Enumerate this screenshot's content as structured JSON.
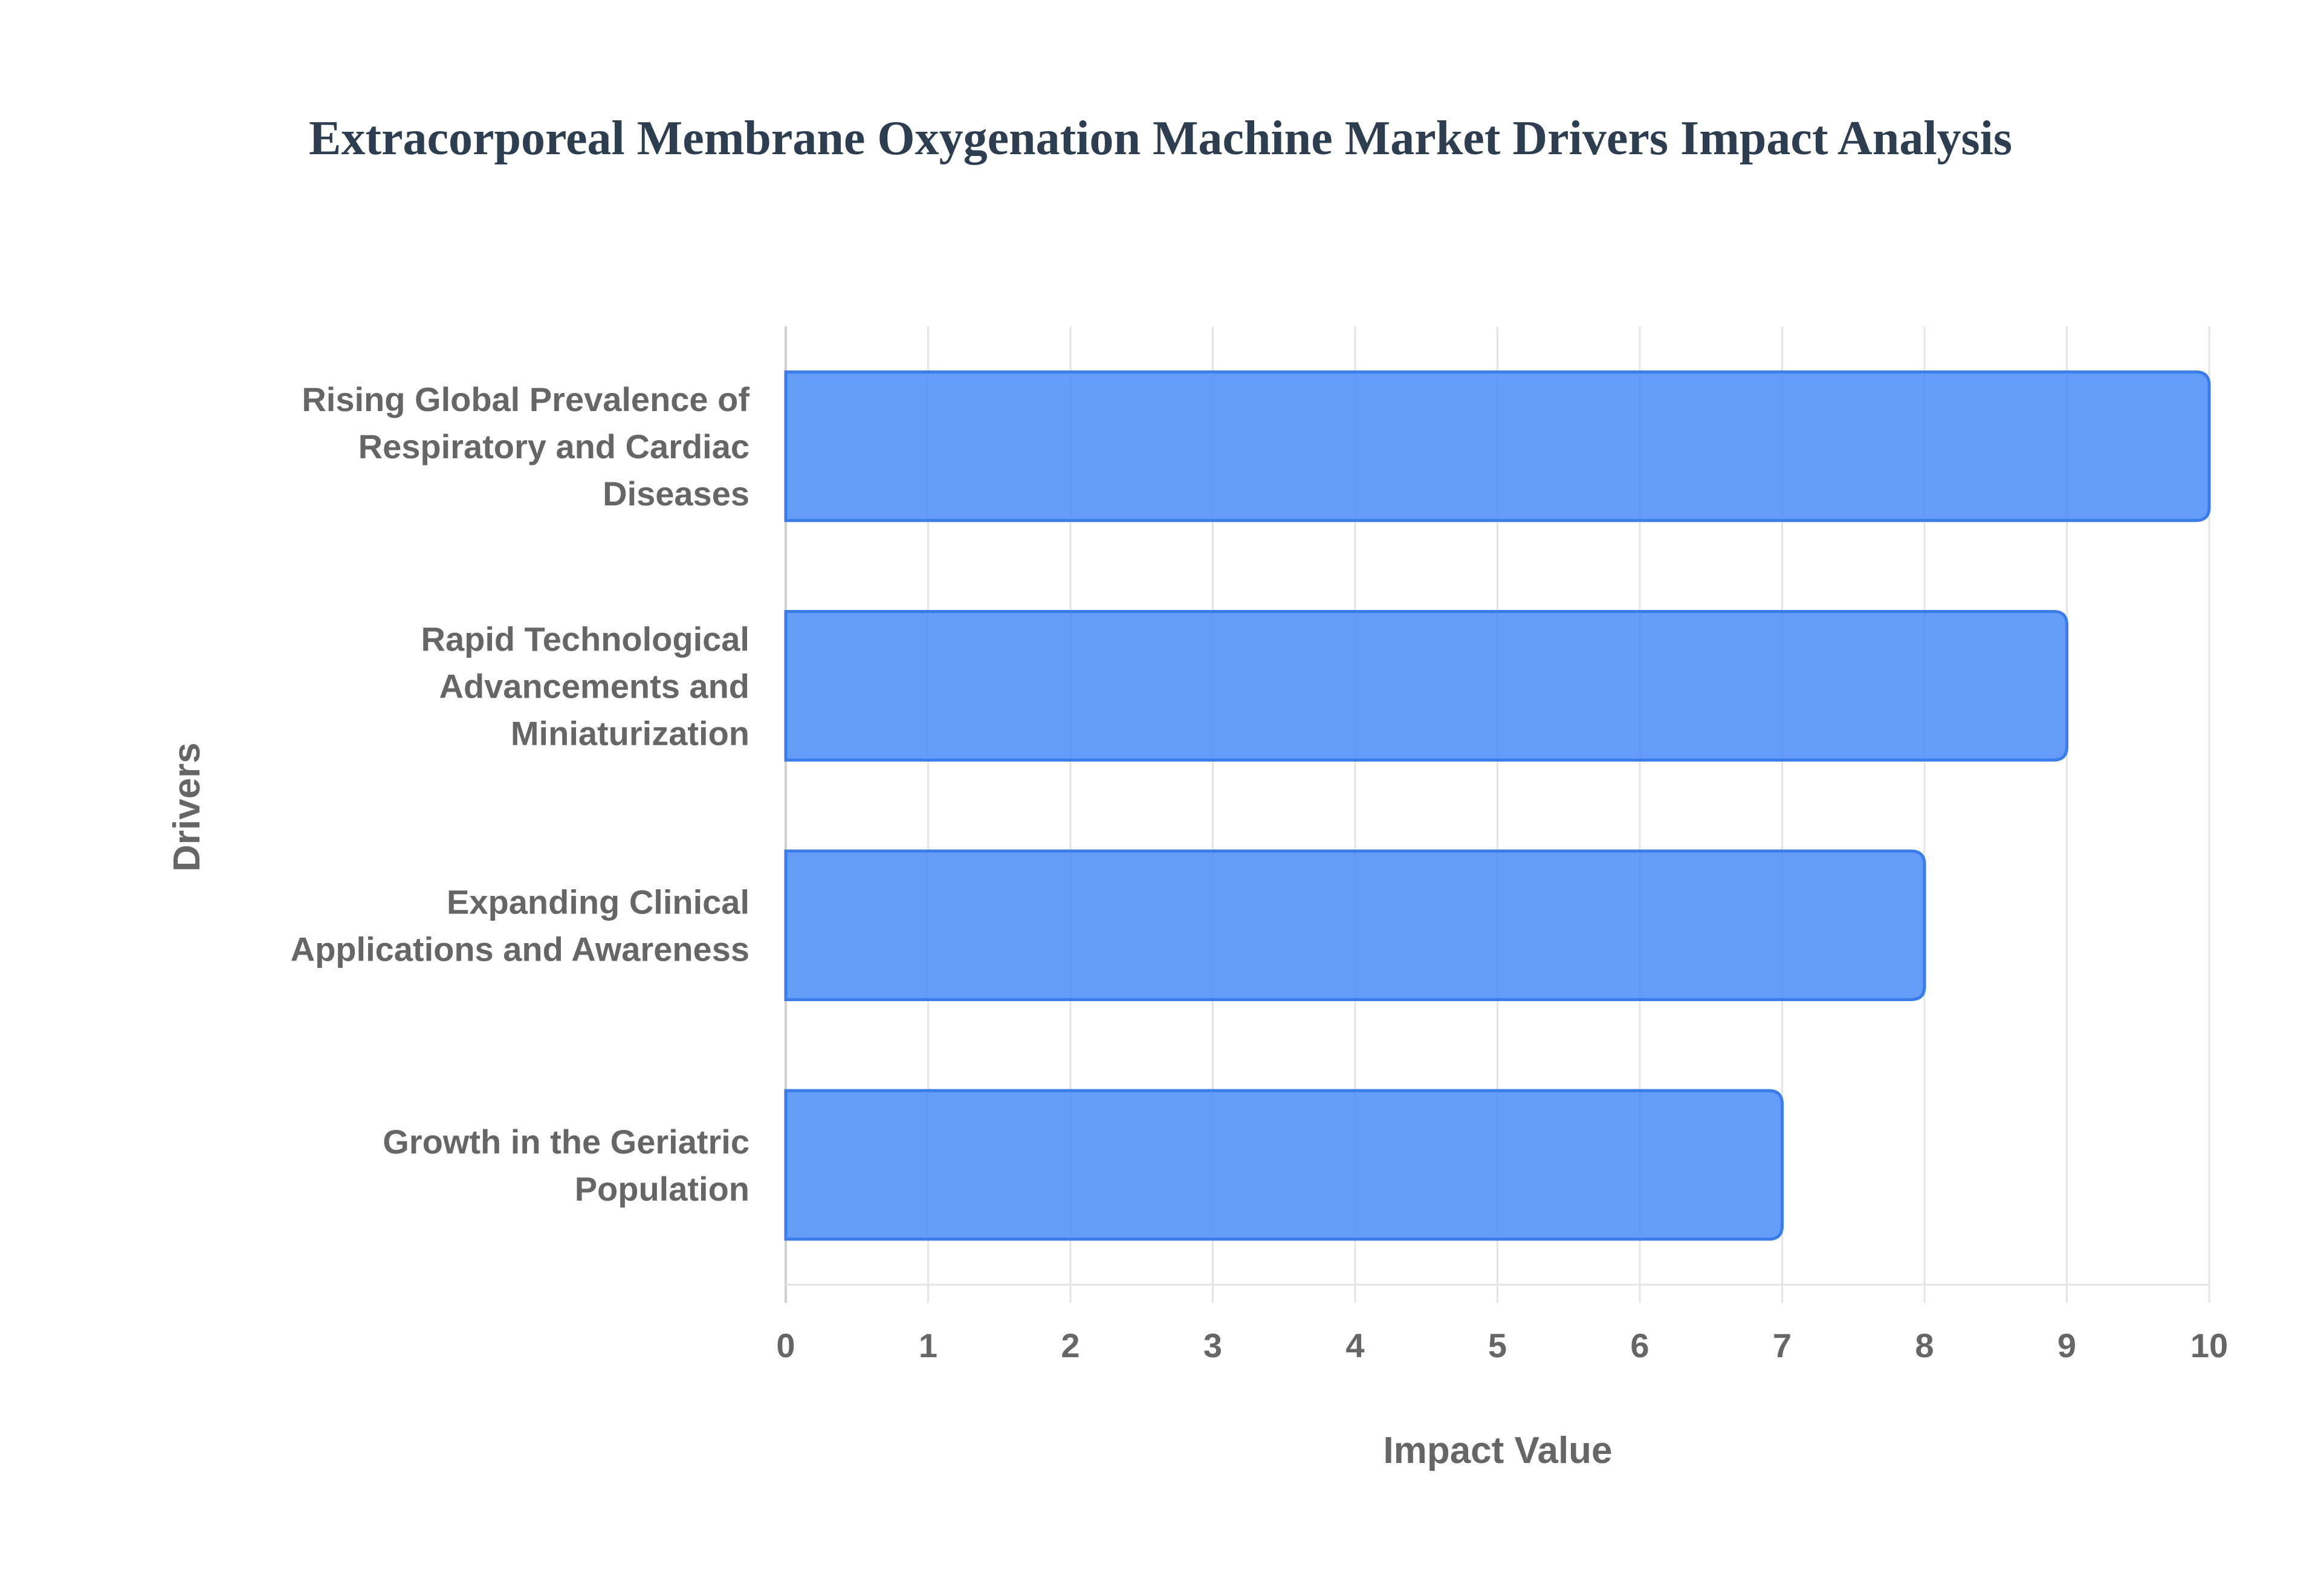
{
  "colors": {
    "bar_fill": "#4f8ef7",
    "bar_stroke": "#3b7de8",
    "grid": "#e5e5e5",
    "axis": "#d0d0d0",
    "title": "#2c3e50",
    "text": "#666666"
  },
  "chart_data": {
    "type": "bar",
    "orientation": "horizontal",
    "title": "Extracorporeal Membrane Oxygenation Machine Market Drivers Impact Analysis",
    "xlabel": "Impact Value",
    "ylabel": "Drivers",
    "xlim": [
      0,
      10
    ],
    "grid": true,
    "x_ticks": [
      "0",
      "1",
      "2",
      "3",
      "4",
      "5",
      "6",
      "7",
      "8",
      "9",
      "10"
    ],
    "categories": [
      "Rising Global Prevalence of Respiratory and Cardiac Diseases",
      "Rapid Technological Advancements and Miniaturization",
      "Expanding Clinical Applications and Awareness",
      "Growth in the Geriatric Population"
    ],
    "category_label_lines": [
      [
        "Rising Global Prevalence of",
        "Respiratory and Cardiac",
        "Diseases"
      ],
      [
        "Rapid Technological",
        "Advancements and",
        "Miniaturization"
      ],
      [
        "Expanding Clinical",
        "Applications and Awareness"
      ],
      [
        "Growth in the Geriatric",
        "Population"
      ]
    ],
    "values": [
      10,
      9,
      8,
      7
    ]
  }
}
